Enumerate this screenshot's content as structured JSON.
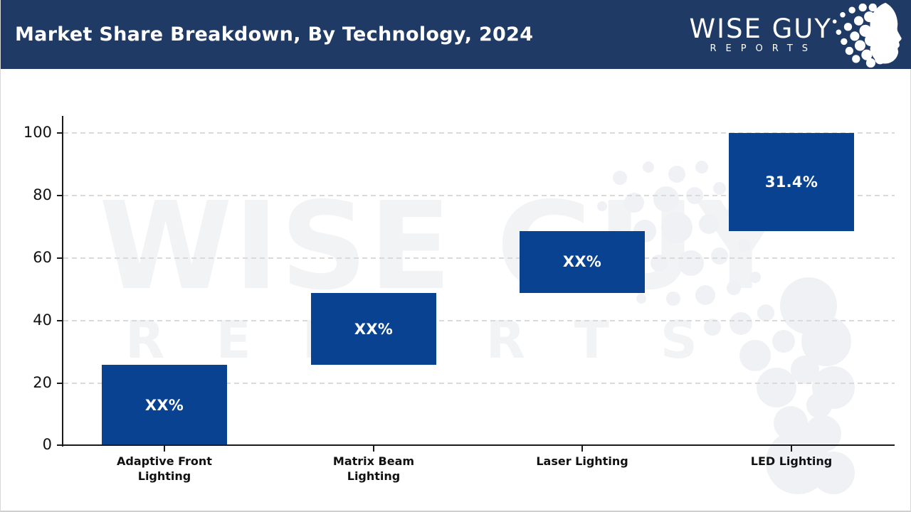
{
  "header": {
    "title": "Market Share Breakdown, By Technology, 2024",
    "logo": {
      "line1": "WISE GUY",
      "line2": "REPORTS"
    },
    "bg_color": "#203a66"
  },
  "watermark": {
    "line1": "WISE GUY",
    "line2": "REPORTS"
  },
  "chart_data": {
    "type": "bar",
    "variant": "floating-range (waterfall style market share bars)",
    "title": "Market Share Breakdown, By Technology, 2024",
    "categories": [
      "Adaptive Front Lighting",
      "Matrix Beam Lighting",
      "Laser Lighting",
      "LED Lighting"
    ],
    "series": [
      {
        "name": "Market Share",
        "ranges": [
          [
            0,
            25.7
          ],
          [
            25.7,
            48.8
          ],
          [
            48.8,
            68.6
          ],
          [
            68.6,
            100
          ]
        ],
        "segment_sizes": [
          25.7,
          23.1,
          19.8,
          31.4
        ],
        "labels": [
          "XX%",
          "XX%",
          "XX%",
          "31.4%"
        ]
      }
    ],
    "xlabel": "",
    "ylabel": "",
    "ylim": [
      0,
      105
    ],
    "yticks": [
      0,
      20,
      40,
      60,
      80,
      100
    ],
    "grid": "horizontal dashed gridlines at each y-tick",
    "legend": "none",
    "bar_color": "#084291",
    "bar_label_color": "#ffffff",
    "axis_color": "#1a1a1a",
    "grid_color": "#dadada",
    "watermark_color": "#f2f3f5"
  }
}
